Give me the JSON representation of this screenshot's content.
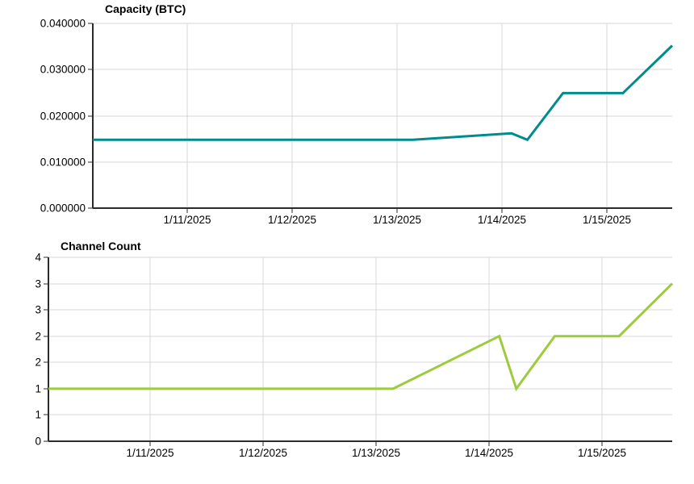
{
  "page": {
    "background": "#FFFFFF"
  },
  "colors": {
    "grid": "#D7D7D7",
    "axis": "#2B2B2B",
    "tick": "#2B2B2B",
    "label_text": "#000000",
    "capacity_line": "#008B8C",
    "channel_line": "#9CCB3C"
  },
  "chart_data": [
    {
      "type": "line",
      "title": "Capacity (BTC)",
      "line_color": "#008B8C",
      "grid": true,
      "legend_position": "none",
      "x_domain": [
        10.1,
        15.62
      ],
      "y_domain": [
        0,
        0.04
      ],
      "x_ticks": [
        {
          "value": 11,
          "label": "1/11/2025"
        },
        {
          "value": 12,
          "label": "1/12/2025"
        },
        {
          "value": 13,
          "label": "1/13/2025"
        },
        {
          "value": 14,
          "label": "1/14/2025"
        },
        {
          "value": 15,
          "label": "1/15/2025"
        }
      ],
      "y_ticks": [
        {
          "value": 0.0,
          "label": "0.000000"
        },
        {
          "value": 0.01,
          "label": "0.010000"
        },
        {
          "value": 0.02,
          "label": "0.020000"
        },
        {
          "value": 0.03,
          "label": "0.030000"
        },
        {
          "value": 0.04,
          "label": "0.040000"
        }
      ],
      "series": [
        {
          "name": "capacity-btc",
          "x": [
            10.1,
            13.15,
            14.09,
            14.24,
            14.58,
            15.15,
            15.62
          ],
          "y": [
            0.0148,
            0.0148,
            0.0162,
            0.0148,
            0.0249,
            0.0249,
            0.0352
          ]
        }
      ]
    },
    {
      "type": "line",
      "title": "Channel Count",
      "line_color": "#9CCB3C",
      "grid": true,
      "legend_position": "none",
      "x_domain": [
        10.1,
        15.62
      ],
      "y_domain": [
        0,
        3.5
      ],
      "x_ticks": [
        {
          "value": 11,
          "label": "1/11/2025"
        },
        {
          "value": 12,
          "label": "1/12/2025"
        },
        {
          "value": 13,
          "label": "1/13/2025"
        },
        {
          "value": 14,
          "label": "1/14/2025"
        },
        {
          "value": 15,
          "label": "1/15/2025"
        }
      ],
      "y_ticks": [
        {
          "value": 0.0,
          "label": "0"
        },
        {
          "value": 0.5,
          "label": "1"
        },
        {
          "value": 1.0,
          "label": "1"
        },
        {
          "value": 1.5,
          "label": "2"
        },
        {
          "value": 2.0,
          "label": "2"
        },
        {
          "value": 2.5,
          "label": "3"
        },
        {
          "value": 3.0,
          "label": "3"
        },
        {
          "value": 3.5,
          "label": "4"
        }
      ],
      "series": [
        {
          "name": "channel-count",
          "x": [
            10.1,
            13.15,
            14.09,
            14.24,
            14.58,
            15.15,
            15.62
          ],
          "y": [
            1,
            1,
            2,
            1,
            2,
            2,
            3
          ]
        }
      ]
    }
  ]
}
